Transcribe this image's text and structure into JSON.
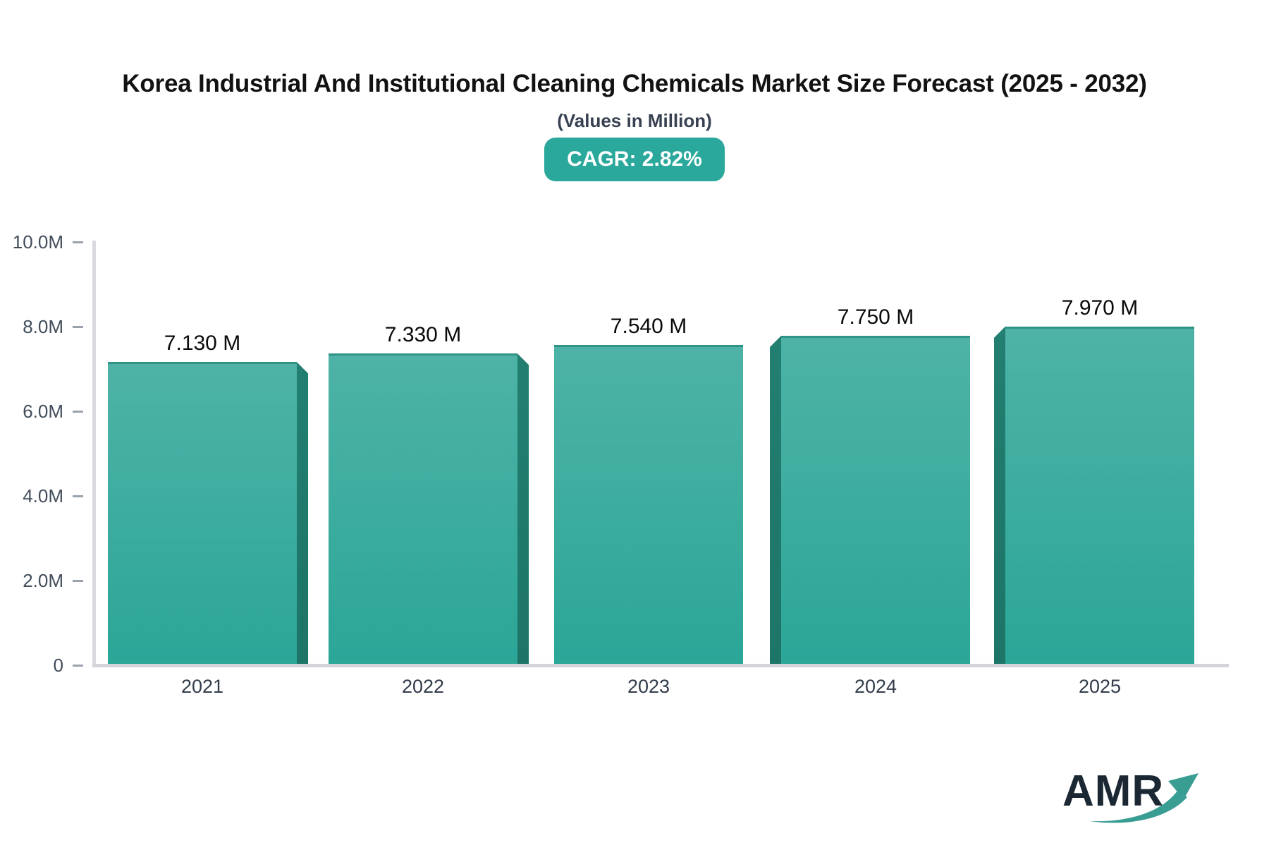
{
  "header": {
    "title": "Korea Industrial And Institutional Cleaning Chemicals Market Size Forecast (2025 - 2032)",
    "subtitle": "(Values in Million)",
    "cagr_label": "CAGR: 2.82%"
  },
  "chart_data": {
    "type": "bar",
    "title": "Korea Industrial And Institutional Cleaning Chemicals Market Size Forecast (2025 - 2032)",
    "subtitle": "(Values in Million)",
    "cagr_percent": 2.82,
    "categories": [
      "2021",
      "2022",
      "2023",
      "2024",
      "2025"
    ],
    "values": [
      7.13,
      7.33,
      7.54,
      7.75,
      7.97
    ],
    "bar_labels": [
      "7.130 M",
      "7.330 M",
      "7.540 M",
      "7.750 M",
      "7.970 M"
    ],
    "unit": "Million",
    "ylim": [
      0,
      10
    ],
    "ytick_values": [
      0,
      2,
      4,
      6,
      8,
      10
    ],
    "ytick_labels": [
      "0",
      "2.0M",
      "4.0M",
      "6.0M",
      "8.0M",
      "10.0M"
    ],
    "xlabel": "",
    "ylabel": "",
    "grid": false,
    "legend": false,
    "bar_style": "3d-extruded"
  },
  "colors": {
    "bar_top": "#4eb3a6",
    "bar_bottom": "#2ba697",
    "bar_side": "#217e70",
    "badge_background": "#2aa89b",
    "badge_text": "#ffffff",
    "axis_line": "#d6d8de",
    "axis_text": "#424d5b",
    "value_text": "#0a0a0a",
    "logo_text": "#1b2733",
    "logo_arrow": "#3a9d93"
  },
  "logo": {
    "text": "AMR"
  }
}
